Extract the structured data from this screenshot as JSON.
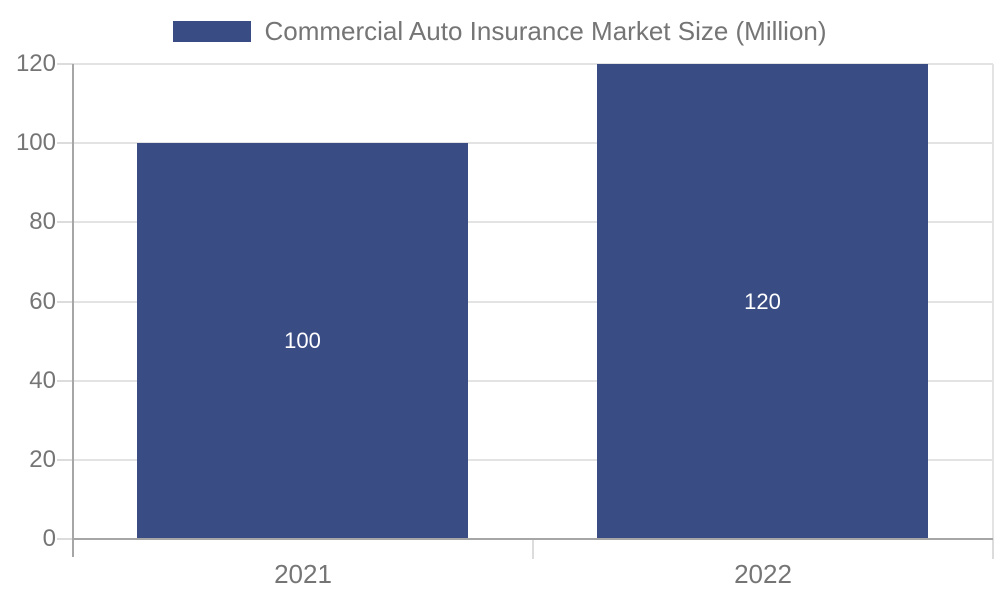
{
  "chart_data": {
    "type": "bar",
    "categories": [
      "2021",
      "2022"
    ],
    "series": [
      {
        "name": "Commercial Auto Insurance Market Size (Million)",
        "values": [
          100,
          120
        ]
      }
    ],
    "value_labels": [
      "100",
      "120"
    ],
    "title": "",
    "xlabel": "",
    "ylabel": "",
    "ylim": [
      0,
      120
    ],
    "yticks": [
      0,
      20,
      40,
      60,
      80,
      100,
      120
    ],
    "grid": true,
    "legend_position": "top-center",
    "colors": {
      "bar": "#394C84",
      "value_label": "#ffffff",
      "axis_text": "#757575",
      "grid_line": "#e3e3e3",
      "axis_line": "#a6a6a6"
    }
  }
}
